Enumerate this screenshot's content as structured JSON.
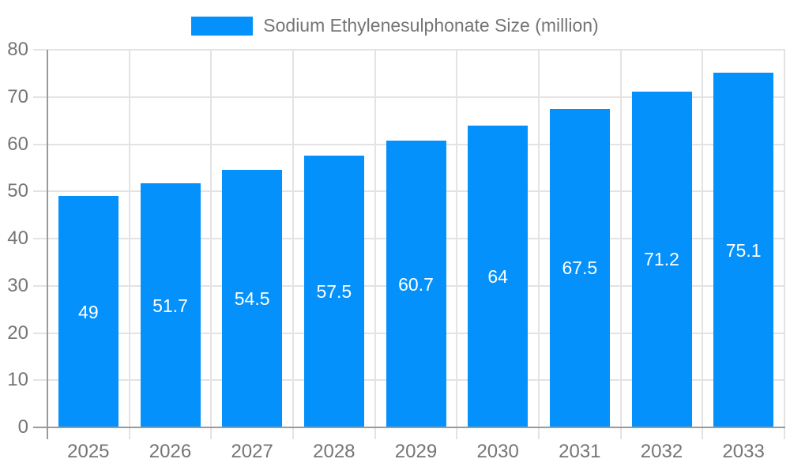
{
  "legend": {
    "label": "Sodium Ethylenesulphonate Size (million)",
    "swatch_color": "#0591fb"
  },
  "chart_data": {
    "type": "bar",
    "title": "Sodium Ethylenesulphonate Size (million)",
    "categories": [
      "2025",
      "2026",
      "2027",
      "2028",
      "2029",
      "2030",
      "2031",
      "2032",
      "2033"
    ],
    "values": [
      49,
      51.7,
      54.5,
      57.5,
      60.7,
      64,
      67.5,
      71.2,
      75.1
    ],
    "value_labels": [
      "49",
      "51.7",
      "54.5",
      "57.5",
      "60.7",
      "64",
      "67.5",
      "71.2",
      "75.1"
    ],
    "xlabel": "",
    "ylabel": "",
    "ylim": [
      0,
      80
    ],
    "yticks": [
      0,
      10,
      20,
      30,
      40,
      50,
      60,
      70,
      80
    ],
    "grid": true,
    "legend_position": "top-center",
    "colors": {
      "bar": "#0591fb",
      "data_label": "#ffffff",
      "axis": "#9a9a9a",
      "grid": "#e3e3e3",
      "tick_text": "#757575"
    }
  }
}
